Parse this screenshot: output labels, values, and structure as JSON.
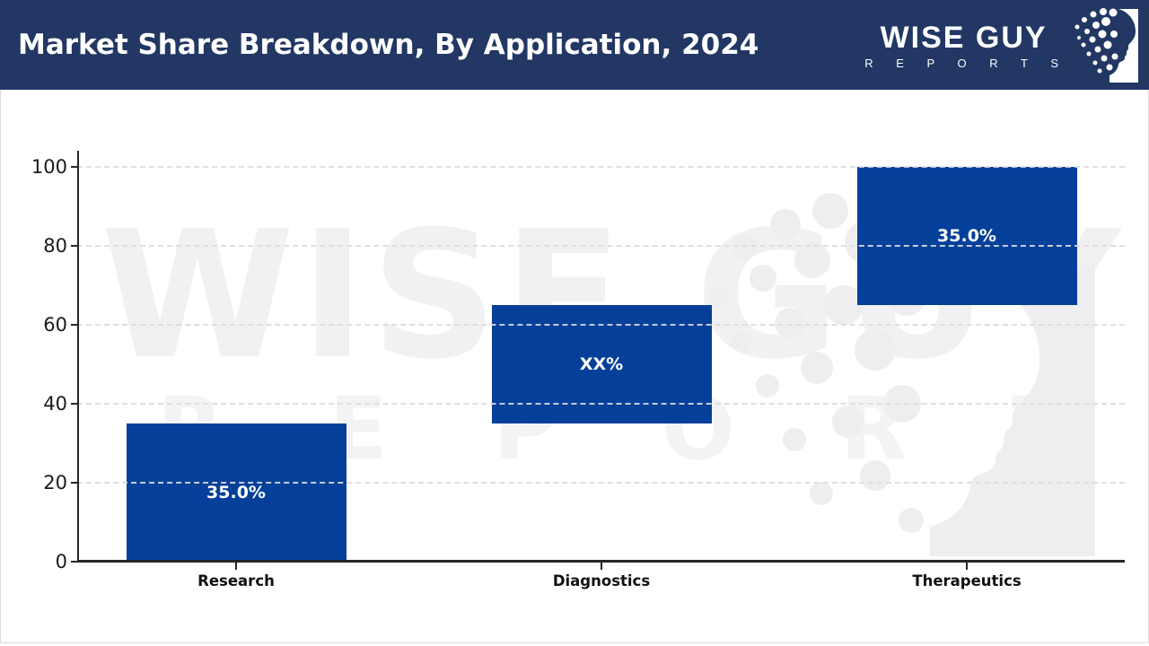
{
  "header": {
    "title": "Market Share Breakdown, By Application, 2024",
    "logo": {
      "line1": "WISE GUY",
      "line2": "R E P O R T S"
    }
  },
  "watermark": {
    "line1": "WISE GUY",
    "line2": "R E P O R T S"
  },
  "chart_data": {
    "type": "bar",
    "subtype": "waterfall",
    "title": "Market Share Breakdown, By Application, 2024",
    "categories": [
      "Research",
      "Diagnostics",
      "Therapeutics"
    ],
    "series": [
      {
        "name": "Market Share",
        "segments": [
          {
            "category": "Research",
            "start": 0,
            "end": 35,
            "label": "35.0%"
          },
          {
            "category": "Diagnostics",
            "start": 35,
            "end": 65,
            "label": "XX%"
          },
          {
            "category": "Therapeutics",
            "start": 65,
            "end": 100,
            "label": "35.0%"
          }
        ]
      }
    ],
    "y_ticks": [
      0,
      20,
      40,
      60,
      80,
      100
    ],
    "ylim": [
      0,
      104
    ],
    "xlabel": "",
    "ylabel": "",
    "grid": "horizontal-dashed",
    "legend": "none",
    "bar_color": "#04409a",
    "bar_label_color": "#ffffff"
  },
  "colors": {
    "header_bg": "#223764",
    "bar": "#04409a",
    "grid": "#dbdbdd",
    "axis": "#262626",
    "watermark": "#f1f1f3"
  }
}
